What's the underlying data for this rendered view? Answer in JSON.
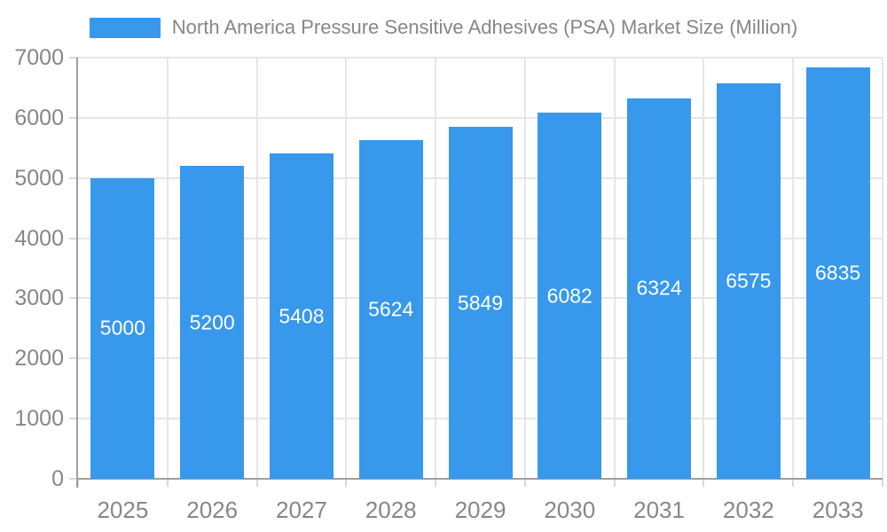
{
  "legend": {
    "label": "North America Pressure Sensitive Adhesives (PSA) Market Size (Million)"
  },
  "chart_data": {
    "type": "bar",
    "title": "North America Pressure Sensitive Adhesives (PSA) Market Size (Million)",
    "series_name": "North America Pressure Sensitive Adhesives (PSA) Market Size (Million)",
    "categories": [
      "2025",
      "2026",
      "2027",
      "2028",
      "2029",
      "2030",
      "2031",
      "2032",
      "2033"
    ],
    "values": [
      5000,
      5200,
      5408,
      5624,
      5849,
      6082,
      6324,
      6575,
      6835
    ],
    "xlabel": "",
    "ylabel": "",
    "ylim": [
      0,
      7000
    ],
    "yticks": [
      0,
      1000,
      2000,
      3000,
      4000,
      5000,
      6000,
      7000
    ],
    "grid": true,
    "legend_position": "top",
    "value_labels_inside_bars": true,
    "colors": {
      "bar": "#3898ec",
      "value_label": "#ffffff",
      "axis_text": "#878787",
      "grid": "#e6e6e6",
      "tick": "#d9d9d9",
      "axis_line": "#9e9e9e",
      "background": "#ffffff"
    }
  }
}
